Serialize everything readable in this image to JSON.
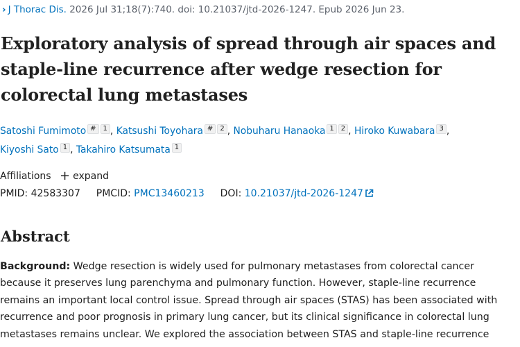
{
  "citation": {
    "journal": "J Thorac Dis.",
    "details": "2026 Jul 31;18(7):740. doi: 10.21037/jtd-2026-1247. Epub 2026 Jun 23."
  },
  "article": {
    "title": "Exploratory analysis of spread through air spaces and staple-line recurrence after wedge resection for colorectal lung metastases"
  },
  "authors": [
    {
      "name": "Satoshi Fumimoto",
      "marks": [
        "#",
        "1"
      ],
      "sep": ","
    },
    {
      "name": "Katsushi Toyohara",
      "marks": [
        "#",
        "2"
      ],
      "sep": ","
    },
    {
      "name": "Nobuharu Hanaoka",
      "marks": [
        "1",
        "2"
      ],
      "sep": ","
    },
    {
      "name": "Hiroko Kuwabara",
      "marks": [
        "3"
      ],
      "sep": ","
    },
    {
      "name": "Kiyoshi Sato",
      "marks": [
        "1"
      ],
      "sep": ","
    },
    {
      "name": "Takahiro Katsumata",
      "marks": [
        "1"
      ],
      "sep": ""
    }
  ],
  "affiliations": {
    "label": "Affiliations",
    "expand_label": "expand"
  },
  "identifiers": {
    "pmid_label": "PMID:",
    "pmid": "42583307",
    "pmcid_label": "PMCID:",
    "pmcid": "PMC13460213",
    "doi_label": "DOI:",
    "doi": "10.21037/jtd-2026-1247"
  },
  "abstract": {
    "heading": "Abstract",
    "background_label": "Background:",
    "background_text": " Wedge resection is widely used for pulmonary metastases from colorectal cancer because it preserves lung parenchyma and pulmonary function. However, staple-line recurrence remains an important local control issue. Spread through air spaces (STAS) has been associated with recurrence and poor prognosis in primary lung cancer, but its clinical significance in colorectal lung metastases remains unclear. We explored the association between STAS and staple-line recurrence"
  }
}
